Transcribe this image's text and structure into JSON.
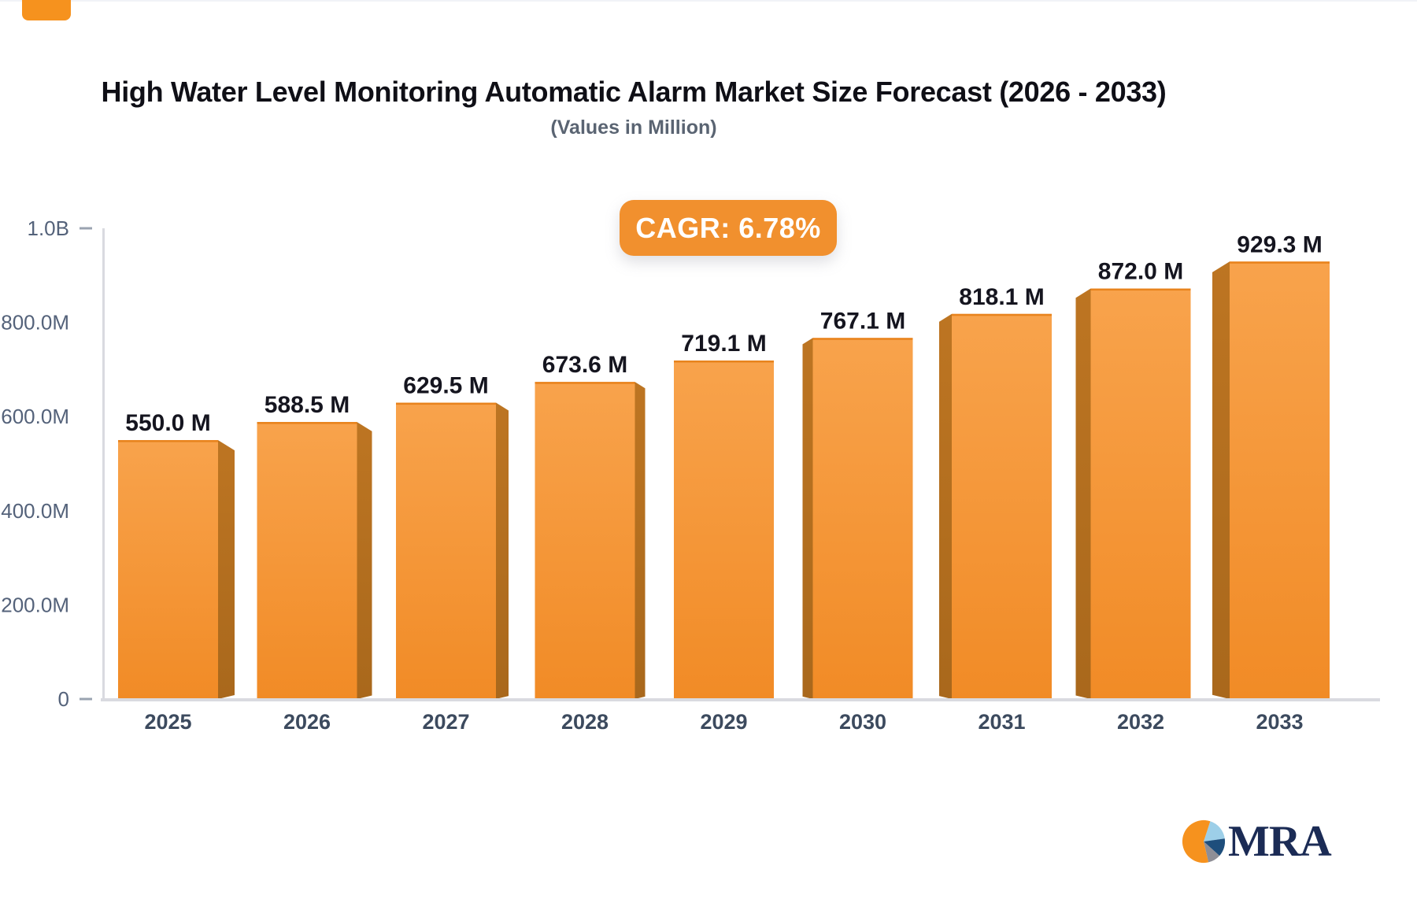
{
  "page": {
    "top_tab_color": "#F6921E"
  },
  "header": {
    "title": "High Water Level Monitoring Automatic Alarm Market Size Forecast (2026 - 2033)",
    "subtitle": "(Values in Million)",
    "cagr_label": "CAGR: 6.78%"
  },
  "chart_data": {
    "type": "bar",
    "title": "High Water Level Monitoring Automatic Alarm Market Size Forecast (2026 - 2033)",
    "subtitle": "(Values in Million)",
    "cagr": "6.78%",
    "categories": [
      "2025",
      "2026",
      "2027",
      "2028",
      "2029",
      "2030",
      "2031",
      "2032",
      "2033"
    ],
    "values": [
      550.0,
      588.5,
      629.5,
      673.6,
      719.1,
      767.1,
      818.1,
      872.0,
      929.3
    ],
    "value_labels": [
      "550.0 M",
      "588.5 M",
      "629.5 M",
      "673.6 M",
      "719.1 M",
      "767.1 M",
      "818.1 M",
      "872.0 M",
      "929.3 M"
    ],
    "unit": "M",
    "ylim": [
      0,
      1000
    ],
    "y_ticks": [
      {
        "label": "1.0B",
        "value": 1000,
        "dash": true
      },
      {
        "label": "800.0M",
        "value": 800,
        "dash": false
      },
      {
        "label": "600.0M",
        "value": 600,
        "dash": false
      },
      {
        "label": "400.0M",
        "value": 400,
        "dash": false
      },
      {
        "label": "200.0M",
        "value": 200,
        "dash": false
      },
      {
        "label": "0",
        "value": 0,
        "dash": true
      }
    ],
    "grid": false,
    "legend": false,
    "bar_style": "3d-perspective",
    "colors": {
      "bar_face_top": "#F8A34C",
      "bar_face_bottom": "#F18B26",
      "bar_edge_top": "#E8831D",
      "bar_side_light": "#BD7522",
      "bar_side_dark": "#A9681C",
      "badge_bg": "#F1902E",
      "badge_text": "#FFFFFF",
      "axis_line": "#D9DAE0",
      "tick_dash": "#9AA3B0",
      "y_label": "#54627A",
      "x_label": "#3C4A5E",
      "value_label": "#15151F",
      "title": "#0F0F16",
      "subtitle": "#5A6472"
    }
  },
  "footer": {
    "logo_text": "MRA",
    "logo_text_color": "#1B2B55",
    "logo_pie_colors": {
      "orange": "#F6921E",
      "light_blue": "#9DCFE8",
      "navy": "#1E4E7C",
      "gray": "#8E8E96"
    }
  }
}
